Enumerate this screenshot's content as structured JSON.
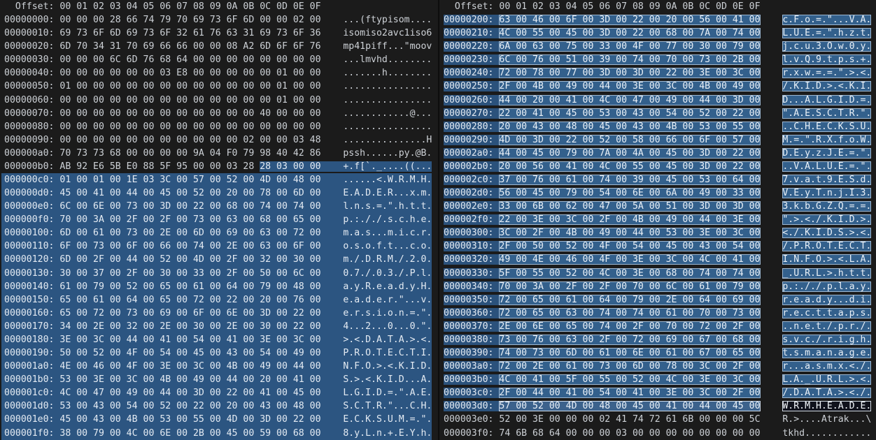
{
  "app": "hexdump viewer (split editor)",
  "colors": {
    "background": "#1b1b1b",
    "text": "#cdd1d6",
    "selection_blue": "#2c5581",
    "selection_box_fill": "#33608c",
    "selection_box_border": "#d5e7f7",
    "match_ascii_background": "#10121c"
  },
  "left_pane": {
    "header": "  Offset: 00 01 02 03 04 05 06 07 08 09 0A 0B 0C 0D 0E 0F",
    "rows": [
      {
        "o": "00000000",
        "h": "00 00 00 28 66 74 79 70 69 73 6F 6D 00 00 02 00",
        "a": "...(ftypisom....",
        "s": "none"
      },
      {
        "o": "00000010",
        "h": "69 73 6F 6D 69 73 6F 32 61 76 63 31 69 73 6F 36",
        "a": "isomiso2avc1iso6",
        "s": "none"
      },
      {
        "o": "00000020",
        "h": "6D 70 34 31 70 69 66 66 00 00 08 A2 6D 6F 6F 76",
        "a": "mp41piff...\"moov",
        "s": "none"
      },
      {
        "o": "00000030",
        "h": "00 00 00 6C 6D 76 68 64 00 00 00 00 00 00 00 00",
        "a": "...lmvhd........",
        "s": "none"
      },
      {
        "o": "00000040",
        "h": "00 00 00 00 00 00 03 E8 00 00 00 00 00 01 00 00",
        "a": ".......h........",
        "s": "none"
      },
      {
        "o": "00000050",
        "h": "01 00 00 00 00 00 00 00 00 00 00 00 00 01 00 00",
        "a": "................",
        "s": "none"
      },
      {
        "o": "00000060",
        "h": "00 00 00 00 00 00 00 00 00 00 00 00 00 01 00 00",
        "a": "................",
        "s": "none"
      },
      {
        "o": "00000070",
        "h": "00 00 00 00 00 00 00 00 00 00 00 00 40 00 00 00",
        "a": "............@...",
        "s": "none"
      },
      {
        "o": "00000080",
        "h": "00 00 00 00 00 00 00 00 00 00 00 00 00 00 00 00",
        "a": "................",
        "s": "none"
      },
      {
        "o": "00000090",
        "h": "00 00 00 00 00 00 00 00 00 00 00 02 00 00 03 48",
        "a": "...............H",
        "s": "none"
      },
      {
        "o": "000000a0",
        "h": "70 73 73 68 00 00 00 00 9A 04 F0 79 98 40 42 86",
        "a": "pssh......py.@B.",
        "s": "none"
      },
      {
        "o": "000000b0",
        "h": "AB 92 E6 5B E0 88 5F 95 00 00 03 28 28 03 00 00",
        "a": "+.f[`._....((...",
        "s": "partial",
        "sb": 12
      },
      {
        "o": "000000c0",
        "h": "01 00 01 00 1E 03 3C 00 57 00 52 00 4D 00 48 00",
        "a": "......<.W.R.M.H.",
        "s": "full"
      },
      {
        "o": "000000d0",
        "h": "45 00 41 00 44 00 45 00 52 00 20 00 78 00 6D 00",
        "a": "E.A.D.E.R...x.m.",
        "s": "full"
      },
      {
        "o": "000000e0",
        "h": "6C 00 6E 00 73 00 3D 00 22 00 68 00 74 00 74 00",
        "a": "l.n.s.=.\".h.t.t.",
        "s": "full"
      },
      {
        "o": "000000f0",
        "h": "70 00 3A 00 2F 00 2F 00 73 00 63 00 68 00 65 00",
        "a": "p.:././.s.c.h.e.",
        "s": "full"
      },
      {
        "o": "00000100",
        "h": "6D 00 61 00 73 00 2E 00 6D 00 69 00 63 00 72 00",
        "a": "m.a.s...m.i.c.r.",
        "s": "full"
      },
      {
        "o": "00000110",
        "h": "6F 00 73 00 6F 00 66 00 74 00 2E 00 63 00 6F 00",
        "a": "o.s.o.f.t...c.o.",
        "s": "full"
      },
      {
        "o": "00000120",
        "h": "6D 00 2F 00 44 00 52 00 4D 00 2F 00 32 00 30 00",
        "a": "m./.D.R.M./.2.0.",
        "s": "full"
      },
      {
        "o": "00000130",
        "h": "30 00 37 00 2F 00 30 00 33 00 2F 00 50 00 6C 00",
        "a": "0.7./.0.3./.P.l.",
        "s": "full"
      },
      {
        "o": "00000140",
        "h": "61 00 79 00 52 00 65 00 61 00 64 00 79 00 48 00",
        "a": "a.y.R.e.a.d.y.H.",
        "s": "full"
      },
      {
        "o": "00000150",
        "h": "65 00 61 00 64 00 65 00 72 00 22 00 20 00 76 00",
        "a": "e.a.d.e.r.\"...v.",
        "s": "full"
      },
      {
        "o": "00000160",
        "h": "65 00 72 00 73 00 69 00 6F 00 6E 00 3D 00 22 00",
        "a": "e.r.s.i.o.n.=.\".",
        "s": "full"
      },
      {
        "o": "00000170",
        "h": "34 00 2E 00 32 00 2E 00 30 00 2E 00 30 00 22 00",
        "a": "4...2...0...0.\".",
        "s": "full"
      },
      {
        "o": "00000180",
        "h": "3E 00 3C 00 44 00 41 00 54 00 41 00 3E 00 3C 00",
        "a": ">.<.D.A.T.A.>.<.",
        "s": "full"
      },
      {
        "o": "00000190",
        "h": "50 00 52 00 4F 00 54 00 45 00 43 00 54 00 49 00",
        "a": "P.R.O.T.E.C.T.I.",
        "s": "full"
      },
      {
        "o": "000001a0",
        "h": "4E 00 46 00 4F 00 3E 00 3C 00 4B 00 49 00 44 00",
        "a": "N.F.O.>.<.K.I.D.",
        "s": "full"
      },
      {
        "o": "000001b0",
        "h": "53 00 3E 00 3C 00 4B 00 49 00 44 00 20 00 41 00",
        "a": "S.>.<.K.I.D...A.",
        "s": "full"
      },
      {
        "o": "000001c0",
        "h": "4C 00 47 00 49 00 44 00 3D 00 22 00 41 00 45 00",
        "a": "L.G.I.D.=.\".A.E.",
        "s": "full"
      },
      {
        "o": "000001d0",
        "h": "53 00 43 00 54 00 52 00 22 00 20 00 43 00 48 00",
        "a": "S.C.T.R.\"...C.H.",
        "s": "full"
      },
      {
        "o": "000001e0",
        "h": "45 00 43 00 4B 00 53 00 55 00 4D 00 3D 00 22 00",
        "a": "E.C.K.S.U.M.=.\".",
        "s": "full"
      },
      {
        "o": "000001f0",
        "h": "38 00 79 00 4C 00 6E 00 2B 00 45 00 59 00 68 00",
        "a": "8.y.L.n.+.E.Y.h.",
        "s": "full"
      }
    ]
  },
  "right_pane": {
    "header": "  Offset: 00 01 02 03 04 05 06 07 08 09 0A 0B 0C 0D 0E 0F",
    "rows": [
      {
        "o": "00000200",
        "h": "63 00 46 00 6F 00 3D 00 22 00 20 00 56 00 41 00",
        "a": "c.F.o.=.\"...V.A.",
        "s": "box"
      },
      {
        "o": "00000210",
        "h": "4C 00 55 00 45 00 3D 00 22 00 68 00 7A 00 74 00",
        "a": "L.U.E.=.\".h.z.t.",
        "s": "box"
      },
      {
        "o": "00000220",
        "h": "6A 00 63 00 75 00 33 00 4F 00 77 00 30 00 79 00",
        "a": "j.c.u.3.O.w.0.y.",
        "s": "box"
      },
      {
        "o": "00000230",
        "h": "6C 00 76 00 51 00 39 00 74 00 70 00 73 00 2B 00",
        "a": "l.v.Q.9.t.p.s.+.",
        "s": "box"
      },
      {
        "o": "00000240",
        "h": "72 00 78 00 77 00 3D 00 3D 00 22 00 3E 00 3C 00",
        "a": "r.x.w.=.=.\".>.<.",
        "s": "box"
      },
      {
        "o": "00000250",
        "h": "2F 00 4B 00 49 00 44 00 3E 00 3C 00 4B 00 49 00",
        "a": "/.K.I.D.>.<.K.I.",
        "s": "box"
      },
      {
        "o": "00000260",
        "h": "44 00 20 00 41 00 4C 00 47 00 49 00 44 00 3D 00",
        "a": "D...A.L.G.I.D.=.",
        "s": "box"
      },
      {
        "o": "00000270",
        "h": "22 00 41 00 45 00 53 00 43 00 54 00 52 00 22 00",
        "a": "\".A.E.S.C.T.R.\".",
        "s": "box"
      },
      {
        "o": "00000280",
        "h": "20 00 43 00 48 00 45 00 43 00 4B 00 53 00 55 00",
        "a": "..C.H.E.C.K.S.U.",
        "s": "box"
      },
      {
        "o": "00000290",
        "h": "4D 00 3D 00 22 00 52 00 58 00 66 00 6F 00 57 00",
        "a": "M.=.\".R.X.f.o.W.",
        "s": "box"
      },
      {
        "o": "000002a0",
        "h": "44 00 45 00 79 00 7A 00 4A 00 45 00 3D 00 22 00",
        "a": "D.E.y.z.J.E.=.\".",
        "s": "box"
      },
      {
        "o": "000002b0",
        "h": "20 00 56 00 41 00 4C 00 55 00 45 00 3D 00 22 00",
        "a": "..V.A.L.U.E.=.\".",
        "s": "box"
      },
      {
        "o": "000002c0",
        "h": "37 00 76 00 61 00 74 00 39 00 45 00 53 00 64 00",
        "a": "7.v.a.t.9.E.S.d.",
        "s": "box"
      },
      {
        "o": "000002d0",
        "h": "56 00 45 00 79 00 54 00 6E 00 6A 00 49 00 33 00",
        "a": "V.E.y.T.n.j.I.3.",
        "s": "box"
      },
      {
        "o": "000002e0",
        "h": "33 00 6B 00 62 00 47 00 5A 00 51 00 3D 00 3D 00",
        "a": "3.k.b.G.Z.Q.=.=.",
        "s": "box"
      },
      {
        "o": "000002f0",
        "h": "22 00 3E 00 3C 00 2F 00 4B 00 49 00 44 00 3E 00",
        "a": "\".>.<./.K.I.D.>.",
        "s": "box"
      },
      {
        "o": "00000300",
        "h": "3C 00 2F 00 4B 00 49 00 44 00 53 00 3E 00 3C 00",
        "a": "<./.K.I.D.S.>.<.",
        "s": "box"
      },
      {
        "o": "00000310",
        "h": "2F 00 50 00 52 00 4F 00 54 00 45 00 43 00 54 00",
        "a": "/.P.R.O.T.E.C.T.",
        "s": "box"
      },
      {
        "o": "00000320",
        "h": "49 00 4E 00 46 00 4F 00 3E 00 3C 00 4C 00 41 00",
        "a": "I.N.F.O.>.<.L.A.",
        "s": "box"
      },
      {
        "o": "00000330",
        "h": "5F 00 55 00 52 00 4C 00 3E 00 68 00 74 00 74 00",
        "a": "_.U.R.L.>.h.t.t.",
        "s": "box"
      },
      {
        "o": "00000340",
        "h": "70 00 3A 00 2F 00 2F 00 70 00 6C 00 61 00 79 00",
        "a": "p.:././.p.l.a.y.",
        "s": "box"
      },
      {
        "o": "00000350",
        "h": "72 00 65 00 61 00 64 00 79 00 2E 00 64 00 69 00",
        "a": "r.e.a.d.y...d.i.",
        "s": "box"
      },
      {
        "o": "00000360",
        "h": "72 00 65 00 63 00 74 00 74 00 61 00 70 00 73 00",
        "a": "r.e.c.t.t.a.p.s.",
        "s": "box"
      },
      {
        "o": "00000370",
        "h": "2E 00 6E 00 65 00 74 00 2F 00 70 00 72 00 2F 00",
        "a": "..n.e.t./.p.r./.",
        "s": "box"
      },
      {
        "o": "00000380",
        "h": "73 00 76 00 63 00 2F 00 72 00 69 00 67 00 68 00",
        "a": "s.v.c./.r.i.g.h.",
        "s": "box"
      },
      {
        "o": "00000390",
        "h": "74 00 73 00 6D 00 61 00 6E 00 61 00 67 00 65 00",
        "a": "t.s.m.a.n.a.g.e.",
        "s": "box"
      },
      {
        "o": "000003a0",
        "h": "72 00 2E 00 61 00 73 00 6D 00 78 00 3C 00 2F 00",
        "a": "r...a.s.m.x.<./.",
        "s": "box"
      },
      {
        "o": "000003b0",
        "h": "4C 00 41 00 5F 00 55 00 52 00 4C 00 3E 00 3C 00",
        "a": "L.A._.U.R.L.>.<.",
        "s": "box"
      },
      {
        "o": "000003c0",
        "h": "2F 00 44 00 41 00 54 00 41 00 3E 00 3C 00 2F 00",
        "a": "/.D.A.T.A.>.<./.",
        "s": "box"
      },
      {
        "o": "000003d0",
        "h": "57 00 52 00 4D 00 48 00 45 00 41 00 44 00 45 00",
        "a": "W.R.M.H.E.A.D.E.",
        "s": "match"
      },
      {
        "o": "000003e0",
        "h": "52 00 3E 00 00 00 02 41 74 72 61 6B 00 00 00 5C",
        "a": "R.>....Atrak...\\",
        "s": "none"
      },
      {
        "o": "000003f0",
        "h": "74 6B 68 64 00 00 00 03 00 00 00 00 00 00 00 00",
        "a": "tkhd............",
        "s": "none"
      }
    ]
  }
}
